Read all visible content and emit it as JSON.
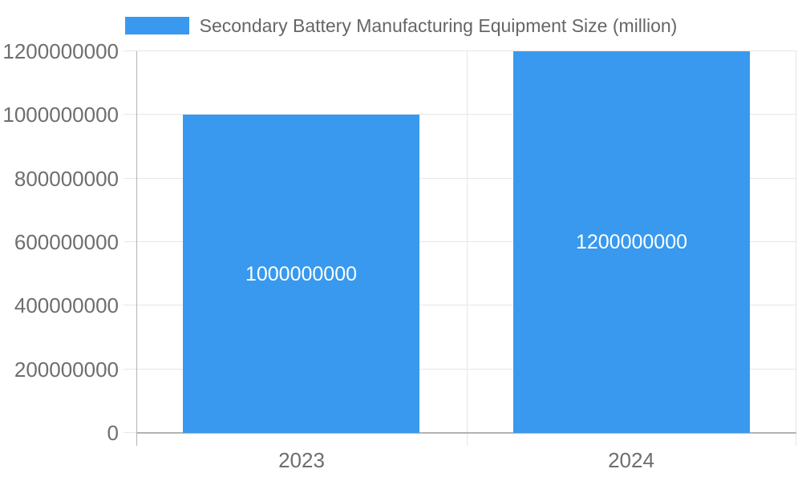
{
  "chart_data": {
    "type": "bar",
    "title": "Secondary Battery Manufacturing Equipment Size (million)",
    "categories": [
      "2023",
      "2024"
    ],
    "values": [
      1000000000,
      1200000000
    ],
    "value_labels": [
      "1000000000",
      "1200000000"
    ],
    "ylim": [
      0,
      1200000000
    ],
    "yticks": [
      0,
      200000000,
      400000000,
      600000000,
      800000000,
      1000000000,
      1200000000
    ],
    "ytick_labels": [
      "0",
      "200000000",
      "400000000",
      "600000000",
      "800000000",
      "1000000000",
      "1200000000"
    ],
    "xlabel": "",
    "ylabel": "",
    "legend_position": "top",
    "grid": true,
    "colors": {
      "bar": "#3899EE",
      "grid_line": "#E6E6E6",
      "axis_line": "#B3B3B3",
      "tick_text": "#6E6E6E",
      "legend_text": "#666666",
      "bar_label_text": "#FFFFFF",
      "background": "#FFFFFF"
    }
  }
}
